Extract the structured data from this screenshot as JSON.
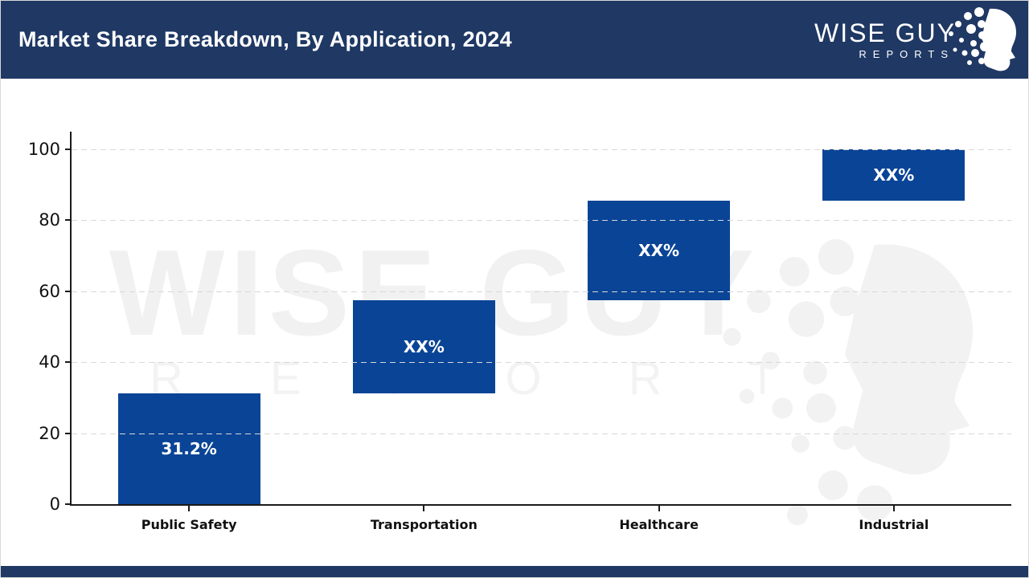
{
  "header": {
    "title": "Market Share Breakdown, By Application, 2024",
    "logo": {
      "line1": "WISE GUY",
      "line2": "REPORTS"
    }
  },
  "watermark": {
    "line1": "WISE GUY",
    "line2": "R E P O R T S"
  },
  "chart_data": {
    "type": "bar",
    "subtype": "waterfall-floating-bars",
    "title": "Market Share Breakdown, By Application, 2024",
    "categories": [
      "Public Safety",
      "Transportation",
      "Healthcare",
      "Industrial"
    ],
    "segments": [
      {
        "category": "Public Safety",
        "start": 0,
        "end": 31.2,
        "label": "31.2%"
      },
      {
        "category": "Transportation",
        "start": 31.2,
        "end": 57.5,
        "label": "XX%"
      },
      {
        "category": "Healthcare",
        "start": 57.5,
        "end": 85.6,
        "label": "XX%"
      },
      {
        "category": "Industrial",
        "start": 85.6,
        "end": 100,
        "label": "XX%"
      }
    ],
    "yticks": [
      0,
      20,
      40,
      60,
      80,
      100
    ],
    "ylim": [
      0,
      100
    ],
    "xlabel": "",
    "ylabel": "",
    "legend": "none",
    "grid": "horizontal-dashed"
  },
  "colors": {
    "header_navy": "#1f3864",
    "bar_blue": "#0a4496",
    "bar_label_white": "#ffffff",
    "gridline_gray": "#d8d8d8",
    "axis_black": "#1a1a1a",
    "watermark_gray": "#f1f1f1"
  }
}
